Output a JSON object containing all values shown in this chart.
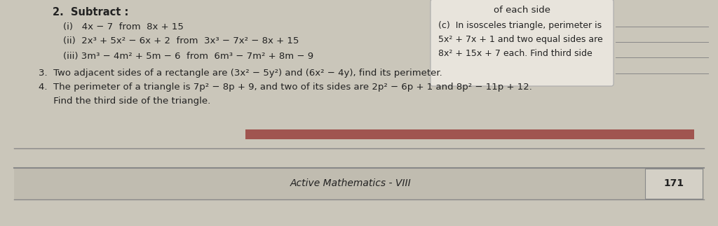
{
  "bg_color": "#cac6ba",
  "page_bg": "#cac6ba",
  "text_color": "#222222",
  "title": "2.  Subtract :",
  "line_i": "(i)   4x − 7  from  8x + 15",
  "line_ii": "(ii)  2x³ + 5x² − 6x + 2  from  3x³ − 7x² − 8x + 15",
  "line_iii": "(iii) 3m³ − 4m² + 5m − 6  from  6m³ − 7m² + 8m − 9",
  "line3": "3.  Two adjacent sides of a rectangle are (3x² − 5y²) and (6x² − 4y), find its perimeter.",
  "line4": "4.  The perimeter of a triangle is 7p² − 8p + 9, and two of its sides are 2p² − 6p + 1 and 8p² − 11p + 12.",
  "line5": "     Find the third side of the triangle.",
  "top_right": "of each side",
  "right_c": "(c)  In isosceles triangle, perimeter is",
  "right_1": "5x² + 7x + 1 and two equal sides are",
  "right_2": "8x² + 15x + 7 each. Find third side",
  "footer_text": "Active Mathematics - VIII",
  "footer_num": "171",
  "highlight_color": "#a05550",
  "white_box_color": "#e8e4dc",
  "line_color": "#888888",
  "footer_bar_color": "#c0bcb0"
}
